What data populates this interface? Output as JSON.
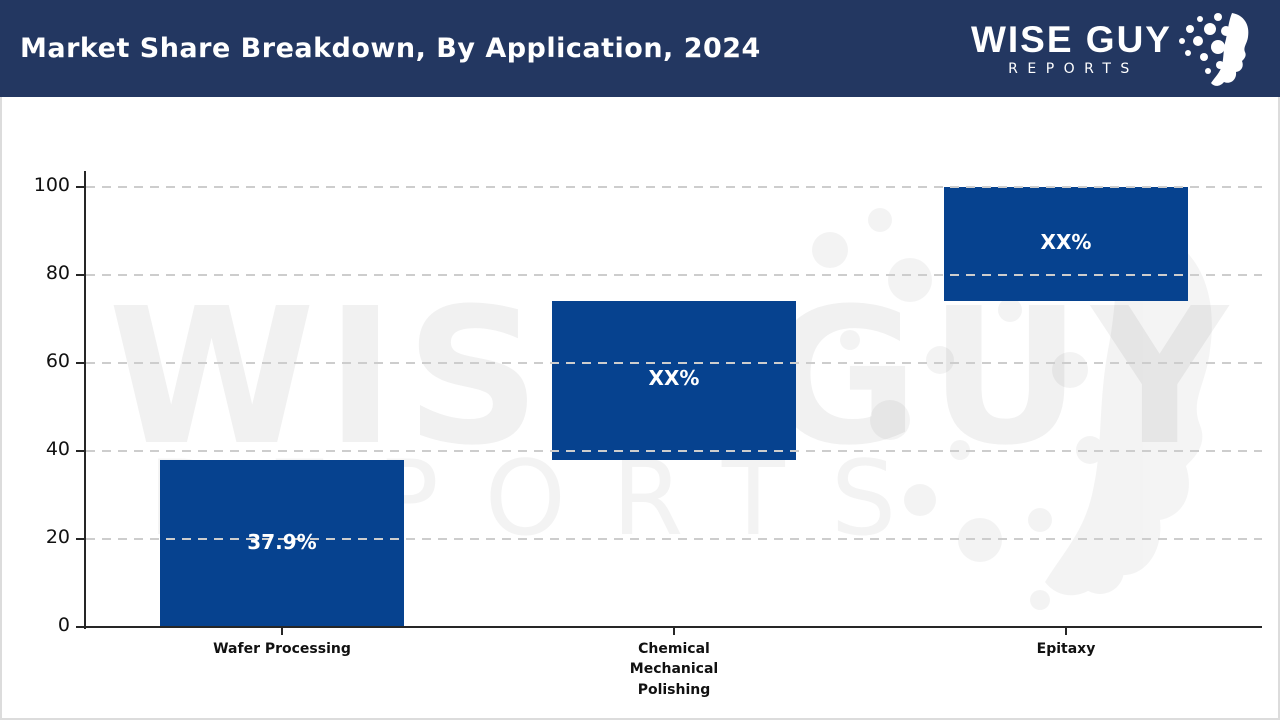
{
  "header": {
    "title": "Market Share Breakdown, By Application, 2024",
    "colors": {
      "background": "#233761",
      "text": "#ffffff"
    },
    "logo": {
      "wordmark": "WISE GUY",
      "subtext": "REPORTS"
    }
  },
  "watermark": {
    "wordmark": "WISE GUY",
    "subtext": "REPORTS"
  },
  "chart_data": {
    "type": "bar",
    "subtype": "floating-waterfall",
    "title": "Market Share Breakdown, By Application, 2024",
    "categories": [
      "Wafer Processing",
      "Chemical\nMechanical\nPolishing",
      "Epitaxy"
    ],
    "series": [
      {
        "name": "Market Share",
        "bars": [
          {
            "category": "Wafer Processing",
            "start": 0,
            "end": 37.9,
            "label": "37.9%"
          },
          {
            "category": "Chemical Mechanical Polishing",
            "start": 37.9,
            "end": 74.2,
            "label": "XX%"
          },
          {
            "category": "Epitaxy",
            "start": 74.2,
            "end": 100,
            "label": "XX%"
          }
        ]
      }
    ],
    "ylim": [
      0,
      100
    ],
    "yticks": [
      0,
      20,
      40,
      60,
      80,
      100
    ],
    "grid": "horizontal-dashed-over-bars",
    "legend": "none",
    "colors": {
      "bar": "#06428f",
      "bar_label": "#ffffff",
      "grid": "#cdcdcd",
      "axis": "#262626",
      "tick_label": "#111111",
      "watermark": "#f1f1f1"
    }
  }
}
